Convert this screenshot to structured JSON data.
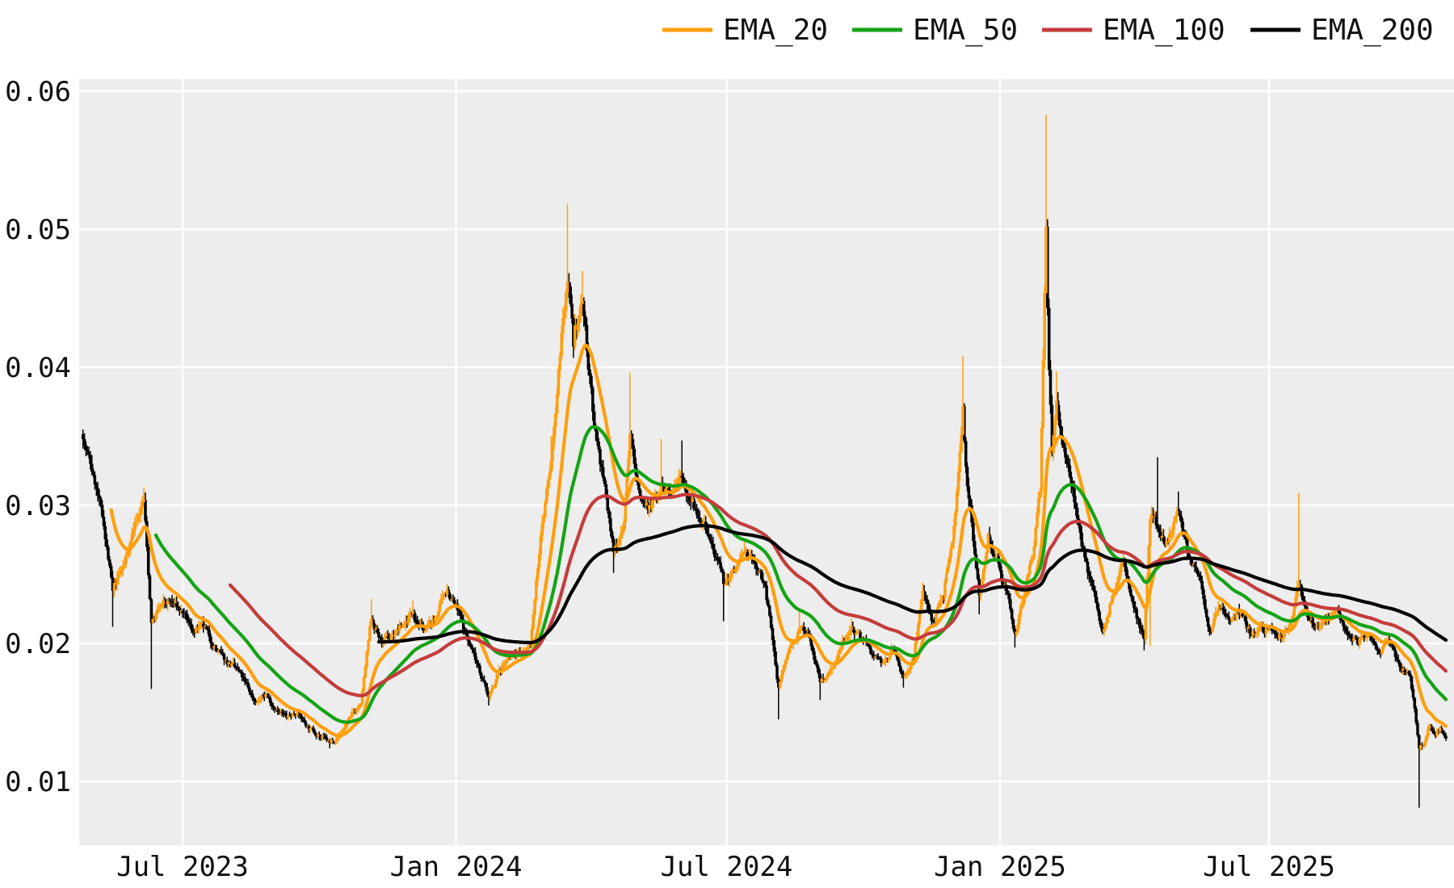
{
  "chart_data": {
    "type": "candlestick",
    "title": "",
    "grid": true,
    "legend_position": "top",
    "legend": [
      {
        "label": "EMA_20",
        "span": 20,
        "color": "#ff9e0d"
      },
      {
        "label": "EMA_50",
        "span": 50,
        "color": "#15a315"
      },
      {
        "label": "EMA_100",
        "span": 100,
        "color": "#c43c3c"
      },
      {
        "label": "EMA_200",
        "span": 200,
        "color": "#000000"
      }
    ],
    "y_ticks": [
      {
        "label": "0.06",
        "value": 0.06
      },
      {
        "label": "0.05",
        "value": 0.05
      },
      {
        "label": "0.04",
        "value": 0.04
      },
      {
        "label": "0.03",
        "value": 0.03
      },
      {
        "label": "0.02",
        "value": 0.02
      },
      {
        "label": "0.01",
        "value": 0.01
      }
    ],
    "x_ticks": [
      {
        "label": "Jul 2023",
        "date": "2023-07-01"
      },
      {
        "label": "Jan 2024",
        "date": "2024-01-01"
      },
      {
        "label": "Jul 2024",
        "date": "2024-07-01"
      },
      {
        "label": "Jan 2025",
        "date": "2025-01-01"
      },
      {
        "label": "Jul 2025",
        "date": "2025-07-01"
      }
    ],
    "ylim": [
      0.00538,
      0.0609
    ],
    "xlim": [
      "2023-04-22",
      "2025-11-02"
    ],
    "colors": {
      "candle_up": "#ff9e0d",
      "candle_down": "#000000",
      "plot_bg": "#ededed",
      "figure_bg": "#ffffff",
      "gridline": "#ffffff",
      "tick_text": "#111111"
    },
    "date_range": {
      "start": "2023-04-25",
      "end": "2025-10-28",
      "frequency": "daily"
    },
    "noise_seed": 7,
    "price_anchors": [
      {
        "d": "2023-04-25",
        "c": 0.0348,
        "h": 0.0355
      },
      {
        "d": "2023-05-02",
        "c": 0.0322
      },
      {
        "d": "2023-05-09",
        "c": 0.0285
      },
      {
        "d": "2023-05-15",
        "c": 0.0238,
        "l": 0.0212
      },
      {
        "d": "2023-05-23",
        "c": 0.0258
      },
      {
        "d": "2023-05-30",
        "c": 0.0288
      },
      {
        "d": "2023-06-05",
        "c": 0.0304,
        "h": 0.0313
      },
      {
        "d": "2023-06-10",
        "c": 0.0215,
        "l": 0.0167
      },
      {
        "d": "2023-06-17",
        "c": 0.0228
      },
      {
        "d": "2023-06-24",
        "c": 0.023
      },
      {
        "d": "2023-07-01",
        "c": 0.0222
      },
      {
        "d": "2023-07-08",
        "c": 0.0208
      },
      {
        "d": "2023-07-15",
        "c": 0.0212
      },
      {
        "d": "2023-07-22",
        "c": 0.0198
      },
      {
        "d": "2023-07-29",
        "c": 0.0188
      },
      {
        "d": "2023-08-05",
        "c": 0.0183
      },
      {
        "d": "2023-08-12",
        "c": 0.0172
      },
      {
        "d": "2023-08-19",
        "c": 0.0157
      },
      {
        "d": "2023-08-26",
        "c": 0.0163
      },
      {
        "d": "2023-09-02",
        "c": 0.0152
      },
      {
        "d": "2023-09-09",
        "c": 0.0146
      },
      {
        "d": "2023-09-16",
        "c": 0.015
      },
      {
        "d": "2023-09-23",
        "c": 0.014
      },
      {
        "d": "2023-09-30",
        "c": 0.0134
      },
      {
        "d": "2023-10-08",
        "c": 0.0128,
        "l": 0.0124
      },
      {
        "d": "2023-10-15",
        "c": 0.0134
      },
      {
        "d": "2023-10-22",
        "c": 0.0147
      },
      {
        "d": "2023-10-29",
        "c": 0.0156
      },
      {
        "d": "2023-11-05",
        "c": 0.0218,
        "h": 0.0232
      },
      {
        "d": "2023-11-12",
        "c": 0.02
      },
      {
        "d": "2023-11-19",
        "c": 0.0206
      },
      {
        "d": "2023-11-26",
        "c": 0.0213
      },
      {
        "d": "2023-12-03",
        "c": 0.0223,
        "h": 0.0231
      },
      {
        "d": "2023-12-10",
        "c": 0.0209
      },
      {
        "d": "2023-12-17",
        "c": 0.0216
      },
      {
        "d": "2023-12-26",
        "c": 0.0239,
        "h": 0.0243
      },
      {
        "d": "2024-01-02",
        "c": 0.0224
      },
      {
        "d": "2024-01-09",
        "c": 0.0202
      },
      {
        "d": "2024-01-16",
        "c": 0.0184
      },
      {
        "d": "2024-01-23",
        "c": 0.0161,
        "l": 0.0155
      },
      {
        "d": "2024-01-30",
        "c": 0.0181
      },
      {
        "d": "2024-02-06",
        "c": 0.019
      },
      {
        "d": "2024-02-13",
        "c": 0.0193
      },
      {
        "d": "2024-02-20",
        "c": 0.0198
      },
      {
        "d": "2024-02-27",
        "c": 0.0278
      },
      {
        "d": "2024-03-05",
        "c": 0.0332,
        "h": 0.035
      },
      {
        "d": "2024-03-12",
        "c": 0.0425
      },
      {
        "d": "2024-03-16",
        "c": 0.0462,
        "h": 0.0518
      },
      {
        "d": "2024-03-20",
        "c": 0.0415
      },
      {
        "d": "2024-03-26",
        "c": 0.0448,
        "h": 0.047
      },
      {
        "d": "2024-04-02",
        "c": 0.0368
      },
      {
        "d": "2024-04-09",
        "c": 0.032
      },
      {
        "d": "2024-04-16",
        "c": 0.0266,
        "l": 0.0251
      },
      {
        "d": "2024-04-23",
        "c": 0.0288
      },
      {
        "d": "2024-04-27",
        "c": 0.0352,
        "h": 0.0396
      },
      {
        "d": "2024-05-04",
        "c": 0.0305
      },
      {
        "d": "2024-05-11",
        "c": 0.0298
      },
      {
        "d": "2024-05-18",
        "c": 0.0315,
        "h": 0.0348
      },
      {
        "d": "2024-05-25",
        "c": 0.0308
      },
      {
        "d": "2024-06-01",
        "c": 0.032,
        "h": 0.0347
      },
      {
        "d": "2024-06-08",
        "c": 0.0305
      },
      {
        "d": "2024-06-15",
        "c": 0.0288
      },
      {
        "d": "2024-06-22",
        "c": 0.0268
      },
      {
        "d": "2024-06-29",
        "c": 0.0243,
        "l": 0.0216
      },
      {
        "d": "2024-07-06",
        "c": 0.0252
      },
      {
        "d": "2024-07-13",
        "c": 0.0266,
        "h": 0.0274
      },
      {
        "d": "2024-07-20",
        "c": 0.0258
      },
      {
        "d": "2024-07-27",
        "c": 0.0242
      },
      {
        "d": "2024-08-05",
        "c": 0.0168,
        "l": 0.0145
      },
      {
        "d": "2024-08-12",
        "c": 0.0196
      },
      {
        "d": "2024-08-19",
        "c": 0.0211,
        "h": 0.0223
      },
      {
        "d": "2024-08-26",
        "c": 0.0204
      },
      {
        "d": "2024-09-02",
        "c": 0.0172,
        "l": 0.0159
      },
      {
        "d": "2024-09-09",
        "c": 0.0181
      },
      {
        "d": "2024-09-16",
        "c": 0.0196
      },
      {
        "d": "2024-09-23",
        "c": 0.0212,
        "h": 0.0218
      },
      {
        "d": "2024-09-30",
        "c": 0.0204
      },
      {
        "d": "2024-10-07",
        "c": 0.0192
      },
      {
        "d": "2024-10-14",
        "c": 0.0186
      },
      {
        "d": "2024-10-21",
        "c": 0.0196
      },
      {
        "d": "2024-10-28",
        "c": 0.0177,
        "l": 0.0168
      },
      {
        "d": "2024-11-04",
        "c": 0.0188
      },
      {
        "d": "2024-11-10",
        "c": 0.0238,
        "h": 0.0244
      },
      {
        "d": "2024-11-17",
        "c": 0.0216
      },
      {
        "d": "2024-11-24",
        "c": 0.0233
      },
      {
        "d": "2024-12-01",
        "c": 0.0285
      },
      {
        "d": "2024-12-07",
        "c": 0.0372,
        "h": 0.0408
      },
      {
        "d": "2024-12-09",
        "c": 0.0328
      },
      {
        "d": "2024-12-12",
        "c": 0.03
      },
      {
        "d": "2024-12-18",
        "c": 0.0235,
        "l": 0.0221
      },
      {
        "d": "2024-12-24",
        "c": 0.0279
      },
      {
        "d": "2024-12-31",
        "c": 0.0258
      },
      {
        "d": "2025-01-07",
        "c": 0.0232
      },
      {
        "d": "2025-01-11",
        "c": 0.0207,
        "l": 0.0197
      },
      {
        "d": "2025-01-16",
        "c": 0.0228
      },
      {
        "d": "2025-01-23",
        "c": 0.0262
      },
      {
        "d": "2025-01-28",
        "c": 0.031
      },
      {
        "d": "2025-02-01",
        "c": 0.0502,
        "h": 0.0583
      },
      {
        "d": "2025-02-03",
        "c": 0.0398
      },
      {
        "d": "2025-02-05",
        "c": 0.0338
      },
      {
        "d": "2025-02-08",
        "c": 0.0376,
        "h": 0.0397
      },
      {
        "d": "2025-02-13",
        "c": 0.0342
      },
      {
        "d": "2025-02-19",
        "c": 0.0312
      },
      {
        "d": "2025-02-25",
        "c": 0.027
      },
      {
        "d": "2025-03-04",
        "c": 0.0242
      },
      {
        "d": "2025-03-11",
        "c": 0.0208
      },
      {
        "d": "2025-03-18",
        "c": 0.0235
      },
      {
        "d": "2025-03-25",
        "c": 0.026
      },
      {
        "d": "2025-04-01",
        "c": 0.0226
      },
      {
        "d": "2025-04-08",
        "c": 0.0203,
        "l": 0.0195
      },
      {
        "d": "2025-04-12",
        "c": 0.029,
        "l": 0.0198
      },
      {
        "d": "2025-04-17",
        "c": 0.0284,
        "h": 0.0335
      },
      {
        "d": "2025-04-24",
        "c": 0.0273
      },
      {
        "d": "2025-05-01",
        "c": 0.0294,
        "h": 0.031
      },
      {
        "d": "2025-05-08",
        "c": 0.0263
      },
      {
        "d": "2025-05-15",
        "c": 0.0249
      },
      {
        "d": "2025-05-22",
        "c": 0.0209
      },
      {
        "d": "2025-05-29",
        "c": 0.0226
      },
      {
        "d": "2025-06-05",
        "c": 0.0216
      },
      {
        "d": "2025-06-12",
        "c": 0.0223
      },
      {
        "d": "2025-06-19",
        "c": 0.0206
      },
      {
        "d": "2025-06-26",
        "c": 0.0213
      },
      {
        "d": "2025-07-03",
        "c": 0.0209
      },
      {
        "d": "2025-07-10",
        "c": 0.0204
      },
      {
        "d": "2025-07-17",
        "c": 0.022
      },
      {
        "d": "2025-07-21",
        "c": 0.0243,
        "h": 0.0309
      },
      {
        "d": "2025-07-26",
        "c": 0.0224
      },
      {
        "d": "2025-08-02",
        "c": 0.0213
      },
      {
        "d": "2025-08-09",
        "c": 0.0219
      },
      {
        "d": "2025-08-16",
        "c": 0.0226
      },
      {
        "d": "2025-08-23",
        "c": 0.0206
      },
      {
        "d": "2025-08-30",
        "c": 0.0199
      },
      {
        "d": "2025-09-06",
        "c": 0.0206
      },
      {
        "d": "2025-09-13",
        "c": 0.0193
      },
      {
        "d": "2025-09-20",
        "c": 0.0201
      },
      {
        "d": "2025-09-27",
        "c": 0.0183
      },
      {
        "d": "2025-10-04",
        "c": 0.0176
      },
      {
        "d": "2025-10-10",
        "c": 0.0124,
        "l": 0.0081
      },
      {
        "d": "2025-10-14",
        "c": 0.0129
      },
      {
        "d": "2025-10-17",
        "c": 0.0141
      },
      {
        "d": "2025-10-21",
        "c": 0.0133
      },
      {
        "d": "2025-10-24",
        "c": 0.0139
      },
      {
        "d": "2025-10-28",
        "c": 0.0131
      }
    ]
  }
}
